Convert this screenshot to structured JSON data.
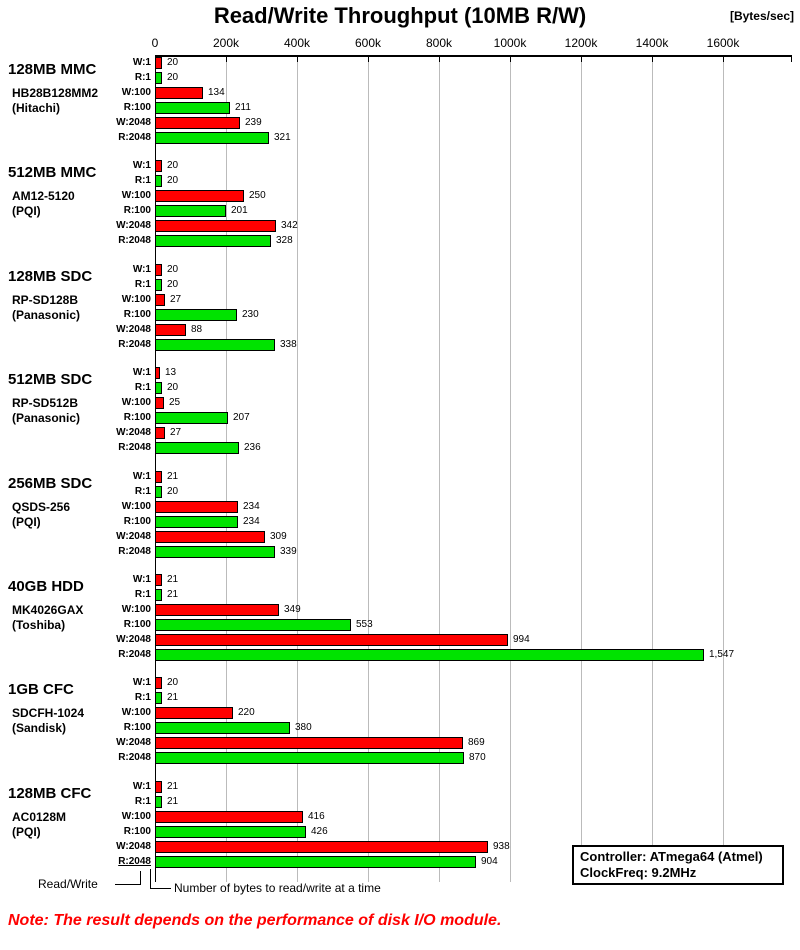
{
  "title": "Read/Write Throughput (10MB R/W)",
  "unit_label": "[Bytes/sec]",
  "note": "Note: The result depends on the performance of disk I/O module.",
  "info_box": {
    "line1": "Controller: ATmega64 (Atmel)",
    "line2": "ClockFreq: 9.2MHz"
  },
  "callouts": {
    "read_write": "Read/Write",
    "bytes": "Number of bytes to read/write at a time"
  },
  "chart_data": {
    "type": "bar",
    "orientation": "horizontal",
    "title": "Read/Write Throughput (10MB R/W)",
    "xlabel": "[Bytes/sec]",
    "value_unit": "kBytes/sec (bar values are in thousands of Bytes/sec)",
    "x_axis": {
      "min": 0,
      "max_k": 1600,
      "tick_step_k": 200,
      "tick_labels": [
        "0",
        "200k",
        "400k",
        "600k",
        "800k",
        "1000k",
        "1200k",
        "1400k",
        "1600k"
      ],
      "grid": true
    },
    "colors": {
      "write": "#ff0000",
      "read": "#00e300",
      "gridline": "#bbbbbb"
    },
    "row_keys": [
      "W:1",
      "R:1",
      "W:100",
      "R:100",
      "W:2048",
      "R:2048"
    ],
    "row_types": [
      "write",
      "read",
      "write",
      "read",
      "write",
      "read"
    ],
    "groups": [
      {
        "size": "128MB MMC",
        "model": "HB28B128MM2",
        "maker": "(Hitachi)",
        "values_k": [
          20,
          20,
          134,
          211,
          239,
          321
        ],
        "labels": [
          "20",
          "20",
          "134",
          "211",
          "239",
          "321"
        ]
      },
      {
        "size": "512MB MMC",
        "model": "AM12-5120",
        "maker": "(PQI)",
        "values_k": [
          20,
          20,
          250,
          201,
          342,
          328
        ],
        "labels": [
          "20",
          "20",
          "250",
          "201",
          "342",
          "328"
        ]
      },
      {
        "size": "128MB SDC",
        "model": "RP-SD128B",
        "maker": "(Panasonic)",
        "values_k": [
          20,
          20,
          27,
          230,
          88,
          338
        ],
        "labels": [
          "20",
          "20",
          "27",
          "230",
          "88",
          "338"
        ]
      },
      {
        "size": "512MB SDC",
        "model": "RP-SD512B",
        "maker": "(Panasonic)",
        "values_k": [
          13,
          20,
          25,
          207,
          27,
          236
        ],
        "labels": [
          "13",
          "20",
          "25",
          "207",
          "27",
          "236"
        ]
      },
      {
        "size": "256MB SDC",
        "model": "QSDS-256",
        "maker": "(PQI)",
        "values_k": [
          21,
          20,
          234,
          234,
          309,
          339
        ],
        "labels": [
          "21",
          "20",
          "234",
          "234",
          "309",
          "339"
        ]
      },
      {
        "size": "40GB HDD",
        "model": "MK4026GAX",
        "maker": "(Toshiba)",
        "values_k": [
          21,
          21,
          349,
          553,
          994,
          1547
        ],
        "labels": [
          "21",
          "21",
          "349",
          "553",
          "994",
          "1,547"
        ]
      },
      {
        "size": "1GB CFC",
        "model": "SDCFH-1024",
        "maker": "(Sandisk)",
        "values_k": [
          20,
          21,
          220,
          380,
          869,
          870
        ],
        "labels": [
          "20",
          "21",
          "220",
          "380",
          "869",
          "870"
        ]
      },
      {
        "size": "128MB CFC",
        "model": "AC0128M",
        "maker": "(PQI)",
        "values_k": [
          21,
          21,
          416,
          426,
          938,
          904
        ],
        "labels": [
          "21",
          "21",
          "416",
          "426",
          "938",
          "904"
        ]
      }
    ]
  }
}
